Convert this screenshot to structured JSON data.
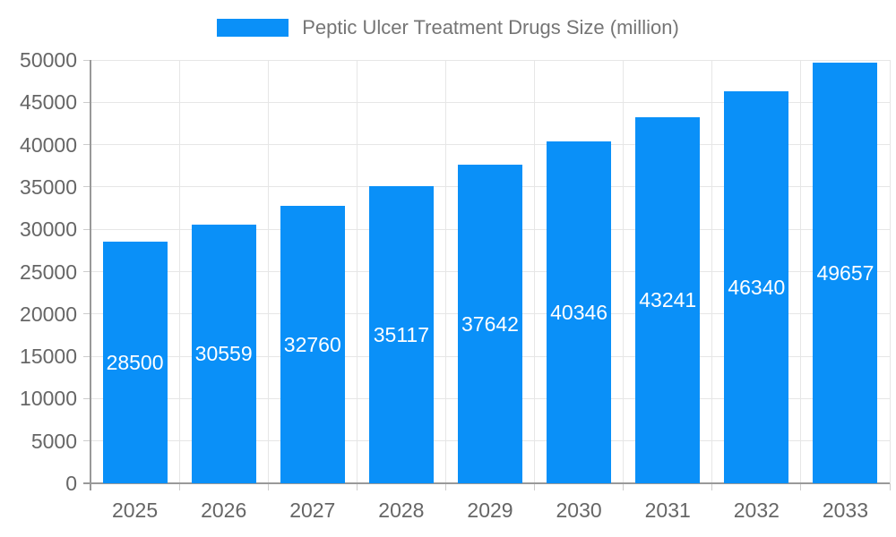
{
  "chart_data": {
    "type": "bar",
    "title": "Peptic Ulcer Treatment Drugs Size (million)",
    "categories": [
      "2025",
      "2026",
      "2027",
      "2028",
      "2029",
      "2030",
      "2031",
      "2032",
      "2033"
    ],
    "values": [
      28500,
      30559,
      32760,
      35117,
      37642,
      40346,
      43241,
      46340,
      49657
    ],
    "xlabel": "",
    "ylabel": "",
    "ylim": [
      0,
      50000
    ],
    "yticks": [
      0,
      5000,
      10000,
      15000,
      20000,
      25000,
      30000,
      35000,
      40000,
      45000,
      50000
    ],
    "grid": true,
    "legend_position": "top-center",
    "value_label_position": "inside-center",
    "colors": {
      "bar": "#0a90f8",
      "value_label": "#ffffff",
      "axis_label": "#666666",
      "legend_text": "#757575",
      "axis_line": "#999999",
      "gridline": "#e6e6e6",
      "tick": "#cccccc"
    }
  }
}
